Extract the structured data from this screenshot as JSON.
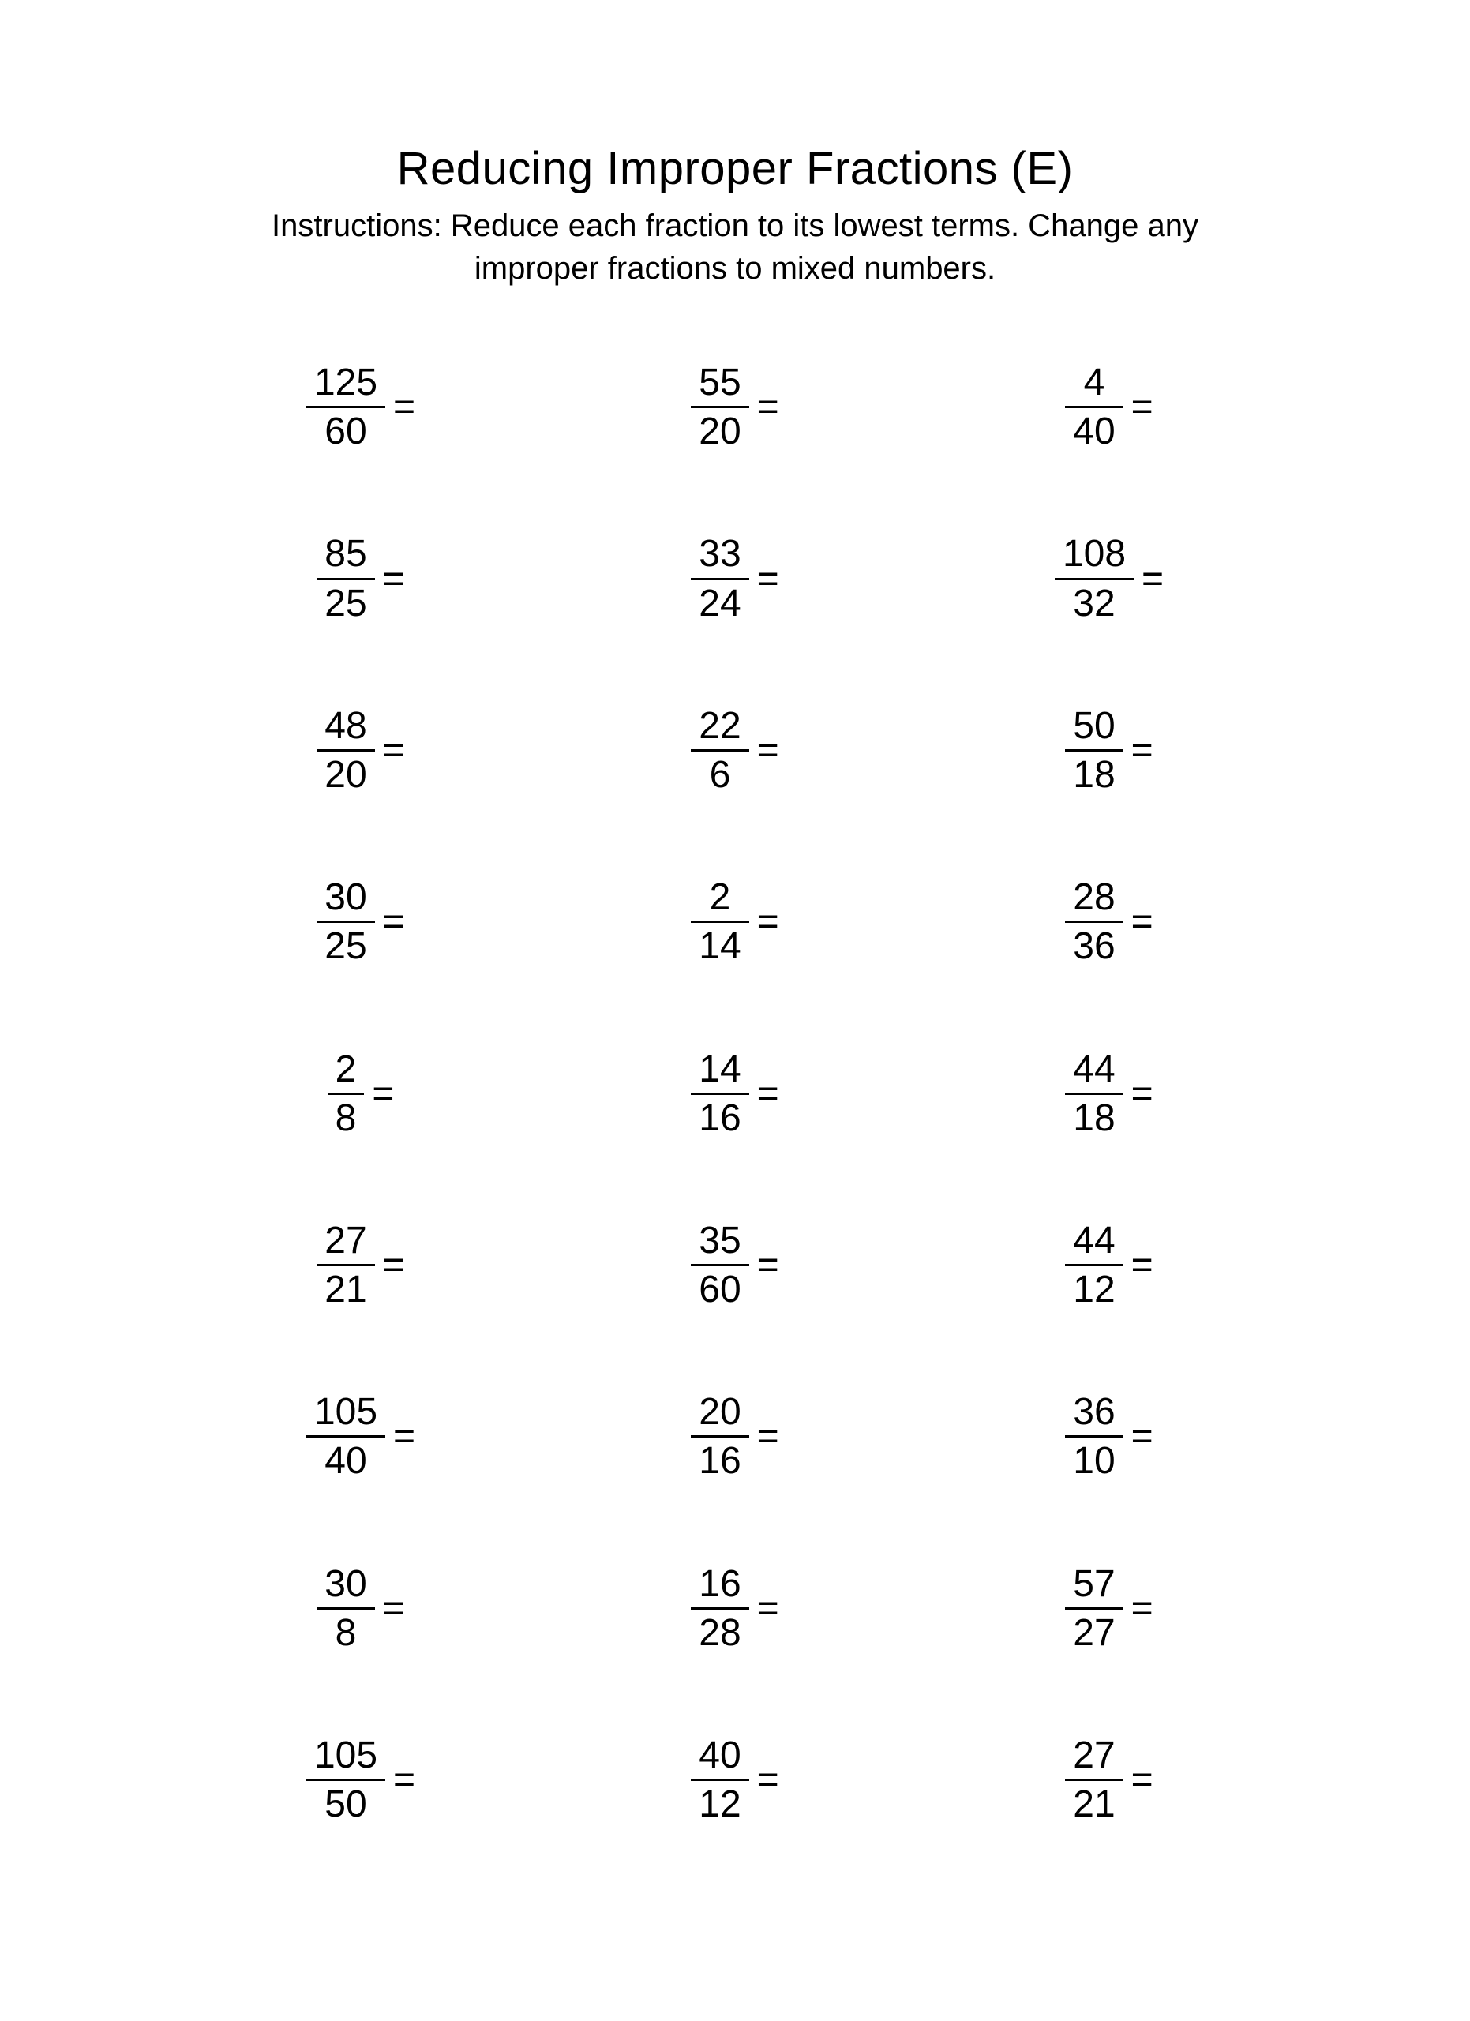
{
  "header": {
    "title": "Reducing Improper Fractions (E)",
    "instructions_line1": "Instructions: Reduce each fraction to its lowest terms. Change any",
    "instructions_line2": "improper fractions to mixed numbers."
  },
  "style": {
    "background_color": "#ffffff",
    "text_color": "#000000",
    "font_family": "Arial, Helvetica, sans-serif",
    "title_fontsize": 58,
    "instructions_fontsize": 40,
    "fraction_fontsize": 48,
    "fraction_bar_color": "#000000",
    "fraction_bar_width": 3,
    "grid_columns": 3,
    "grid_rows": 9,
    "row_gap": 100
  },
  "problems": [
    {
      "numerator": "125",
      "denominator": "60"
    },
    {
      "numerator": "55",
      "denominator": "20"
    },
    {
      "numerator": "4",
      "denominator": "40"
    },
    {
      "numerator": "85",
      "denominator": "25"
    },
    {
      "numerator": "33",
      "denominator": "24"
    },
    {
      "numerator": "108",
      "denominator": "32"
    },
    {
      "numerator": "48",
      "denominator": "20"
    },
    {
      "numerator": "22",
      "denominator": "6"
    },
    {
      "numerator": "50",
      "denominator": "18"
    },
    {
      "numerator": "30",
      "denominator": "25"
    },
    {
      "numerator": "2",
      "denominator": "14"
    },
    {
      "numerator": "28",
      "denominator": "36"
    },
    {
      "numerator": "2",
      "denominator": "8"
    },
    {
      "numerator": "14",
      "denominator": "16"
    },
    {
      "numerator": "44",
      "denominator": "18"
    },
    {
      "numerator": "27",
      "denominator": "21"
    },
    {
      "numerator": "35",
      "denominator": "60"
    },
    {
      "numerator": "44",
      "denominator": "12"
    },
    {
      "numerator": "105",
      "denominator": "40"
    },
    {
      "numerator": "20",
      "denominator": "16"
    },
    {
      "numerator": "36",
      "denominator": "10"
    },
    {
      "numerator": "30",
      "denominator": "8"
    },
    {
      "numerator": "16",
      "denominator": "28"
    },
    {
      "numerator": "57",
      "denominator": "27"
    },
    {
      "numerator": "105",
      "denominator": "50"
    },
    {
      "numerator": "40",
      "denominator": "12"
    },
    {
      "numerator": "27",
      "denominator": "21"
    }
  ],
  "equals_symbol": "="
}
